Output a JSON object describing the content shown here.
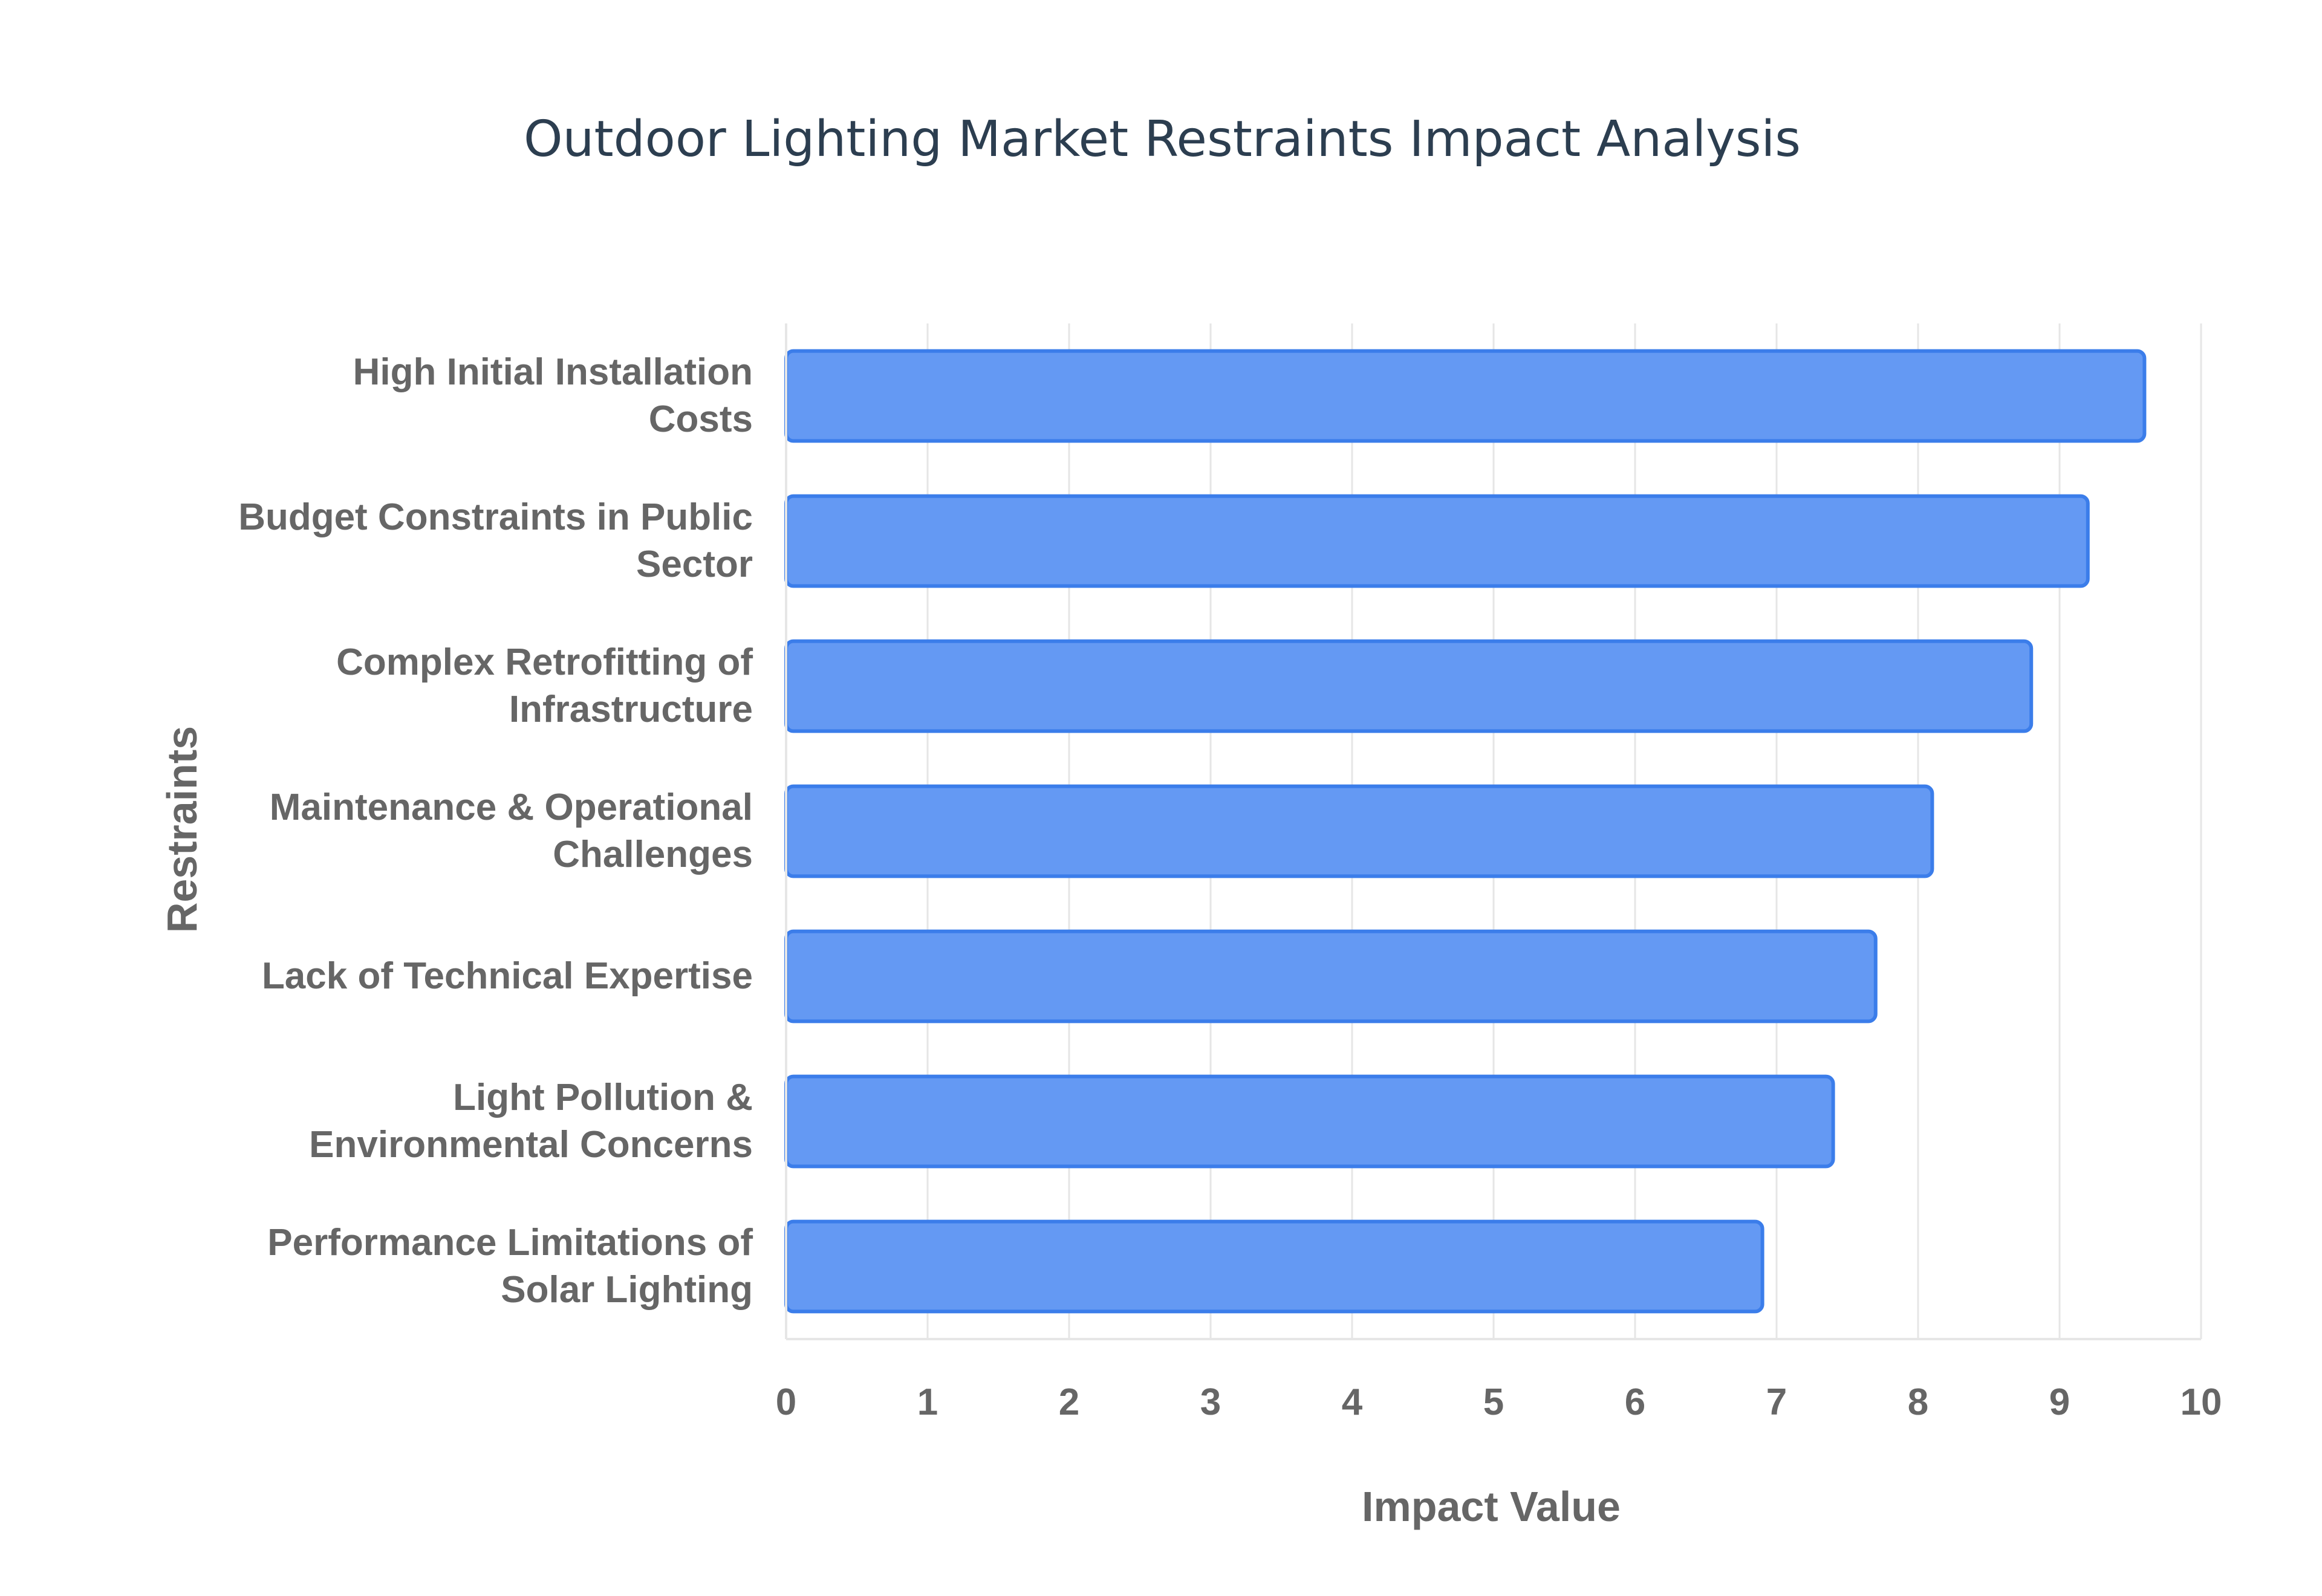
{
  "chart_data": {
    "type": "bar",
    "orientation": "horizontal",
    "title": "Outdoor Lighting Market Restraints Impact Analysis",
    "xlabel": "Impact Value",
    "ylabel": "Restraints",
    "xlim": [
      0,
      10
    ],
    "x_ticks": [
      0,
      1,
      2,
      3,
      4,
      5,
      6,
      7,
      8,
      9,
      10
    ],
    "grid": true,
    "categories": [
      [
        "High Initial Installation",
        "Costs"
      ],
      [
        "Budget Constraints in Public",
        "Sector"
      ],
      [
        "Complex Retrofitting of",
        "Infrastructure"
      ],
      [
        "Maintenance & Operational",
        "Challenges"
      ],
      [
        "Lack of Technical Expertise"
      ],
      [
        "Light Pollution &",
        "Environmental Concerns"
      ],
      [
        "Performance Limitations of",
        "Solar Lighting"
      ]
    ],
    "values": [
      9.6,
      9.2,
      8.8,
      8.1,
      7.7,
      7.4,
      6.9
    ],
    "colors": {
      "bar_fill": "#6499f3",
      "bar_stroke": "#3b7dea",
      "grid": "#e6e6e6",
      "axis": "#e6e6e6",
      "text": "#666666",
      "title": "#2c3e50"
    }
  }
}
